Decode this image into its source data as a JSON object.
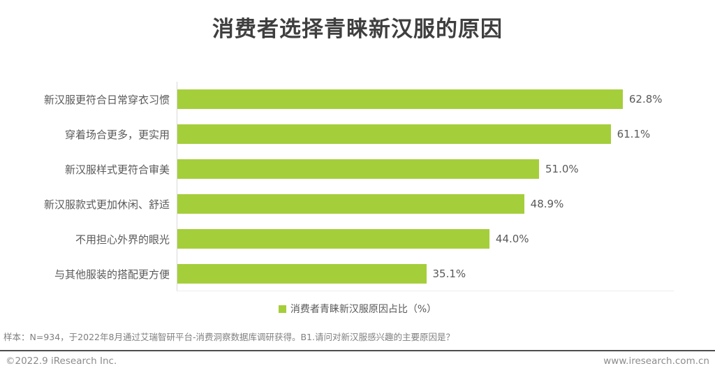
{
  "title": "消费者选择青睐新汉服的原因",
  "chart_data": {
    "type": "bar",
    "orientation": "horizontal",
    "title": "消费者选择青睐新汉服的原因",
    "categories": [
      "新汉服更符合日常穿衣习惯",
      "穿着场合更多，更实用",
      "新汉服样式更符合审美",
      "新汉服款式更加休闲、舒适",
      "不用担心外界的眼光",
      "与其他服装的搭配更方便"
    ],
    "values": [
      62.8,
      61.1,
      51.0,
      48.9,
      44.0,
      35.1
    ],
    "value_labels": [
      "62.8%",
      "61.1%",
      "51.0%",
      "48.9%",
      "44.0%",
      "35.1%"
    ],
    "xlim": [
      0,
      70
    ],
    "grid": false,
    "bar_color": "#a5ce3b",
    "legend_position": "bottom",
    "legend": "消费者青睐新汉服原因占比（%）"
  },
  "legend": {
    "label": "消费者青睐新汉服原因占比（%）"
  },
  "footnote": "样本：N=934，于2022年8月通过艾瑞智研平台-消费洞察数据库调研获得。B1.请问对新汉服感兴趣的主要原因是？",
  "footer": {
    "copyright": "©2022.9 iResearch Inc.",
    "website": "www.iresearch.com.cn"
  }
}
